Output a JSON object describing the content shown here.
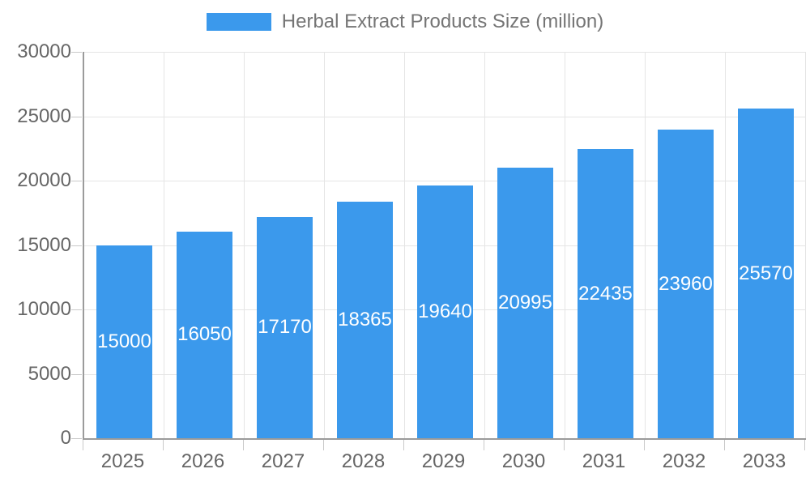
{
  "legend": {
    "label": "Herbal Extract Products Size (million)"
  },
  "colors": {
    "bar": "#3B99EC",
    "legend_text": "#757575",
    "axis_text": "#666666",
    "axis_line": "#9B9B9B",
    "gridline": "#E5E5E5",
    "tick_mark": "#C9C9C9",
    "bar_label_text": "#FFFFFF",
    "background": "#FFFFFF"
  },
  "chart_data": {
    "type": "bar",
    "title": "",
    "legend": "Herbal Extract Products Size (million)",
    "categories": [
      "2025",
      "2026",
      "2027",
      "2028",
      "2029",
      "2030",
      "2031",
      "2032",
      "2033"
    ],
    "values": [
      15000,
      16050,
      17170,
      18365,
      19640,
      20995,
      22435,
      23960,
      25570
    ],
    "value_labels": [
      "15000",
      "16050",
      "17170",
      "18365",
      "19640",
      "20995",
      "22435",
      "23960",
      "25570"
    ],
    "xlabel": "",
    "ylabel": "",
    "ylim": [
      0,
      30000
    ],
    "yticks": [
      0,
      5000,
      10000,
      15000,
      20000,
      25000,
      30000
    ],
    "ytick_labels": [
      "0",
      "5000",
      "10000",
      "15000",
      "20000",
      "25000",
      "30000"
    ],
    "grid": "on",
    "legend_position": "top-center",
    "bar_label_position": "inside-center"
  }
}
